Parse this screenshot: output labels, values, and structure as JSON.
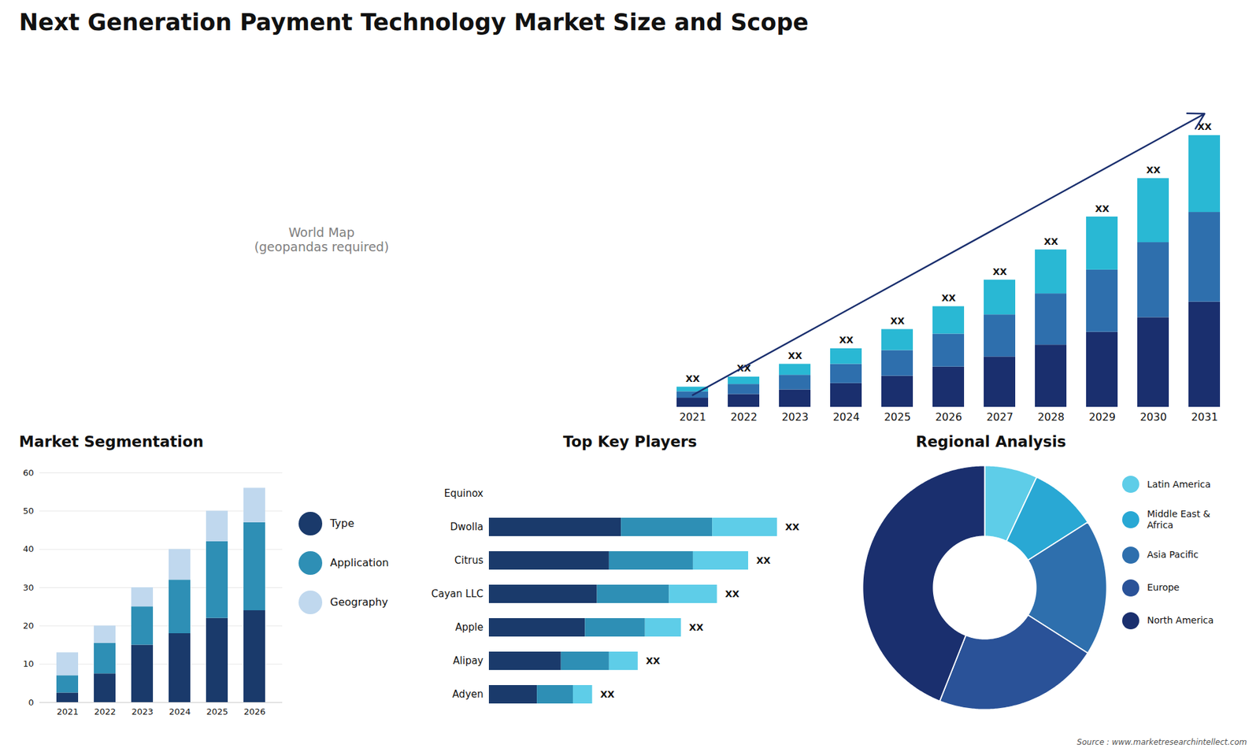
{
  "chart_data": [
    {
      "type": "bar",
      "title": "Next Generation Payment Technology Market Size and Scope",
      "categories": [
        "2021",
        "2022",
        "2023",
        "2024",
        "2025",
        "2026",
        "2027",
        "2028",
        "2029",
        "2030",
        "2031"
      ],
      "series": [
        {
          "color": "#1a2f6e",
          "values": [
            1.0,
            1.4,
            1.9,
            2.6,
            3.4,
            4.4,
            5.5,
            6.8,
            8.2,
            9.8,
            11.5
          ]
        },
        {
          "color": "#2e6fad",
          "values": [
            0.7,
            1.1,
            1.6,
            2.1,
            2.8,
            3.6,
            4.6,
            5.6,
            6.8,
            8.2,
            9.8
          ]
        },
        {
          "color": "#29b8d4",
          "values": [
            0.5,
            0.8,
            1.2,
            1.7,
            2.3,
            3.0,
            3.8,
            4.8,
            5.8,
            7.0,
            8.4
          ]
        }
      ],
      "stacked": true,
      "ylim": [
        0,
        38.016
      ],
      "tick_labels": "x",
      "annotations": [
        {
          "x": "2021",
          "text": "XX"
        },
        {
          "x": "2022",
          "text": "XX"
        },
        {
          "x": "2023",
          "text": "XX"
        },
        {
          "x": "2024",
          "text": "XX"
        },
        {
          "x": "2025",
          "text": "XX"
        },
        {
          "x": "2026",
          "text": "XX"
        },
        {
          "x": "2027",
          "text": "XX"
        },
        {
          "x": "2028",
          "text": "XX"
        },
        {
          "x": "2029",
          "text": "XX"
        },
        {
          "x": "2030",
          "text": "XX"
        },
        {
          "x": "2031",
          "text": "XX"
        },
        {
          "from": {
            "x": "2021",
            "y": 1.32
          },
          "to": {
            "x": "2031",
            "y": 32.076
          },
          "color": "#1a2f6e"
        }
      ]
    },
    {
      "type": "bar",
      "title": "Market Segmentation",
      "categories": [
        "2021",
        "2022",
        "2023",
        "2024",
        "2025",
        "2026"
      ],
      "series": [
        {
          "name": "Type",
          "color": "#1a3a6b",
          "values": [
            2.5,
            7.5,
            15.0,
            18.0,
            22.0,
            24.0
          ]
        },
        {
          "name": "Application",
          "color": "#2e8fb5",
          "values": [
            4.5,
            8.0,
            10.0,
            14.0,
            20.0,
            23.0
          ]
        },
        {
          "name": "Geography",
          "color": "#c0d8ee",
          "values": [
            6.0,
            4.5,
            5.0,
            8.0,
            8.0,
            9.0
          ]
        }
      ],
      "stacked": true,
      "ylim": [
        0,
        60
      ],
      "yticks": [
        0,
        10,
        20,
        30,
        40,
        50,
        60
      ],
      "grid": true,
      "legend": "right"
    },
    {
      "type": "bar",
      "title": "Top Key Players",
      "orientation": "horizontal",
      "categories": [
        "Equinox",
        "Dwolla",
        "Citrus",
        "Cayan LLC",
        "Apple",
        "Alipay",
        "Adyen"
      ],
      "series": [
        {
          "color": "#1a3a6b",
          "values": [
            0.0,
            5.5,
            5.0,
            4.5,
            4.0,
            3.0,
            2.0
          ]
        },
        {
          "color": "#2e8fb5",
          "values": [
            0.0,
            3.8,
            3.5,
            3.0,
            2.5,
            2.0,
            1.5
          ]
        },
        {
          "color": "#5ecde8",
          "values": [
            0.0,
            2.7,
            2.3,
            2.0,
            1.5,
            1.2,
            0.8
          ]
        }
      ],
      "stacked": true,
      "xlim": [
        0,
        14.08
      ],
      "tick_labels": "y",
      "annotations": [
        {
          "y": "Dwolla",
          "text": "XX"
        },
        {
          "y": "Citrus",
          "text": "XX"
        },
        {
          "y": "Cayan LLC",
          "text": "XX"
        },
        {
          "y": "Apple",
          "text": "XX"
        },
        {
          "y": "Alipay",
          "text": "XX"
        },
        {
          "y": "Adyen",
          "text": "XX"
        }
      ]
    },
    {
      "type": "pie",
      "title": "Regional Analysis",
      "categories": [
        "Latin America",
        "Middle East &\nAfrica",
        "Asia Pacific",
        "Europe",
        "North America"
      ],
      "values": [
        7,
        9,
        18,
        22,
        44
      ],
      "colors": [
        "#5ecde8",
        "#29a8d4",
        "#2e6fad",
        "#2a5298",
        "#1a2f6e"
      ],
      "legend": "right"
    },
    {
      "type": "text",
      "annotations": [
        "World Map\n(geopandas required)"
      ]
    },
    {
      "type": "text",
      "annotations": [
        "Source : www.marketresearchintellect.com"
      ]
    }
  ]
}
